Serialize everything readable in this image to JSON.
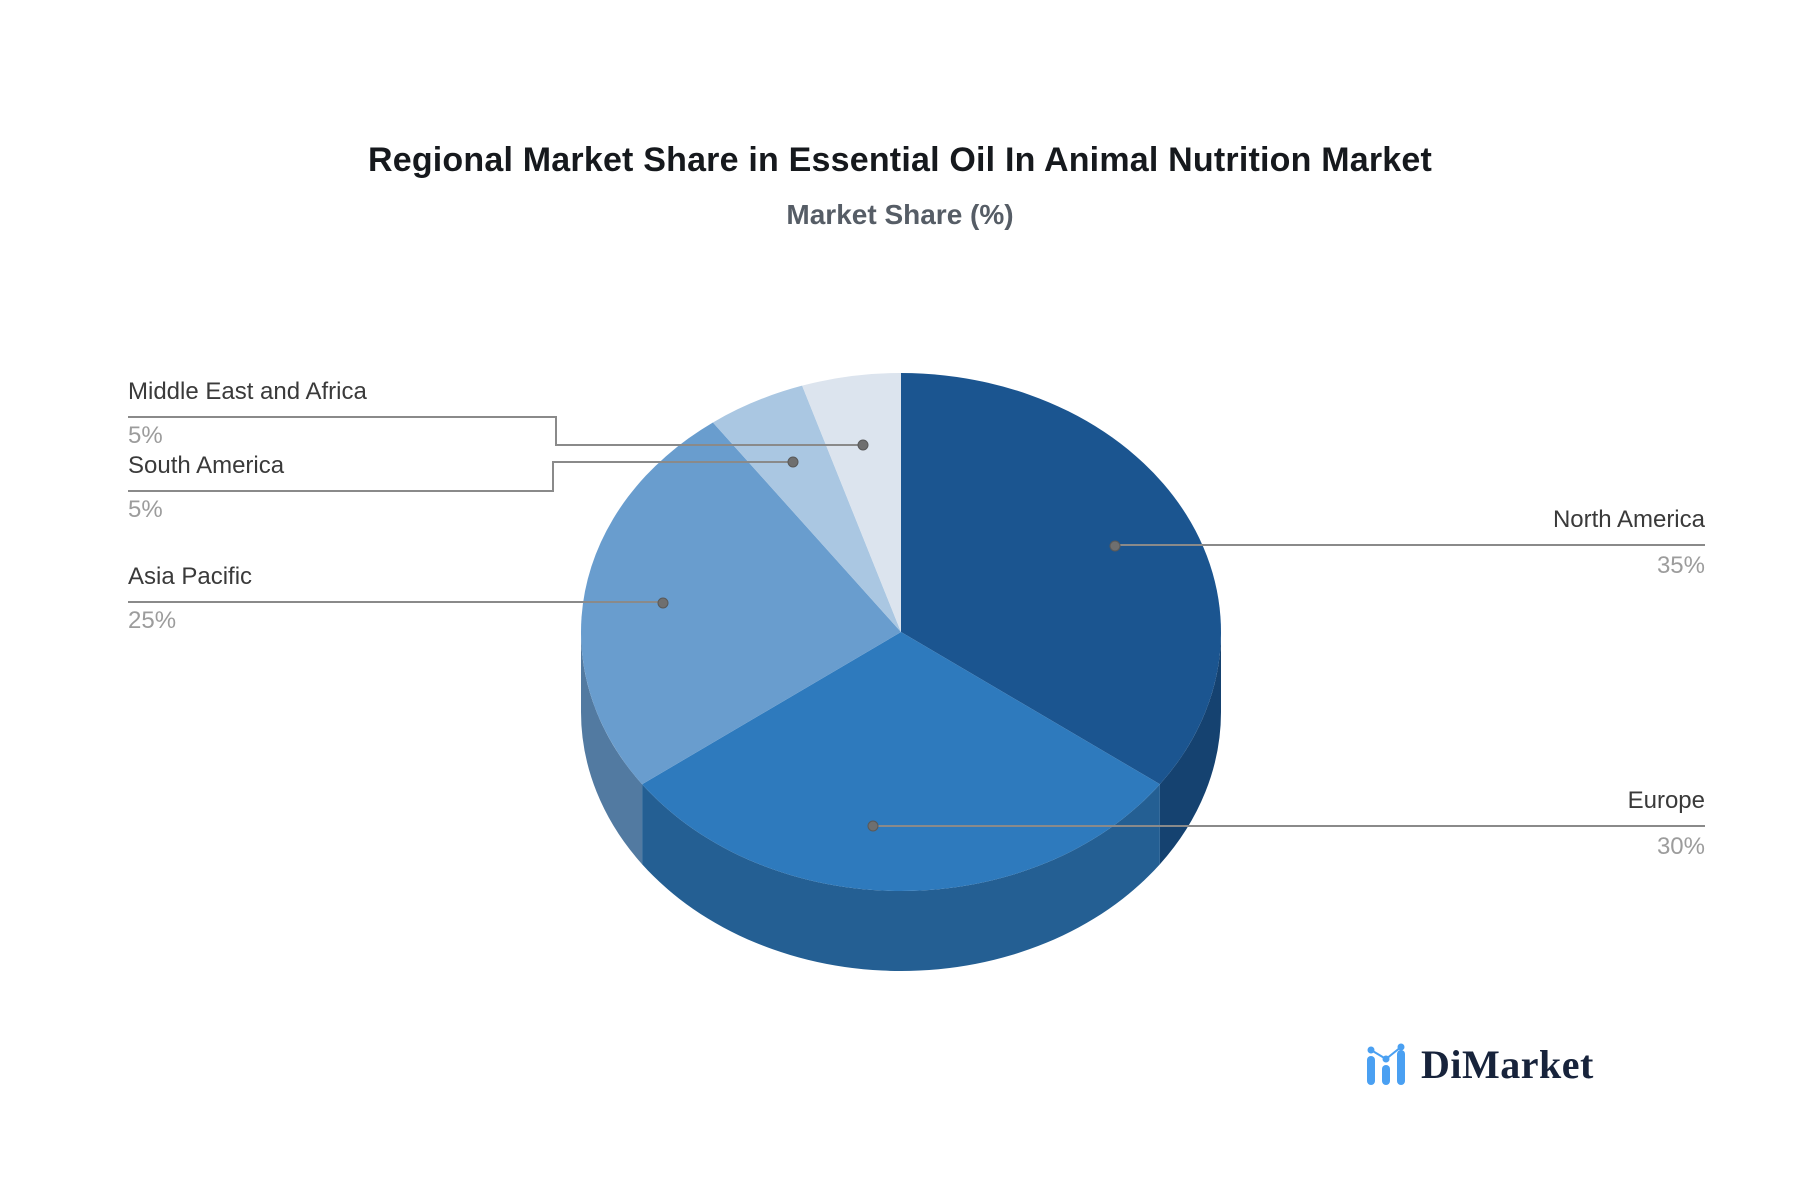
{
  "title": "Regional Market Share in Essential Oil In Animal Nutrition Market",
  "subtitle": "Market Share (%)",
  "chart_data": {
    "type": "pie",
    "style": "3d",
    "unit": "%",
    "direction": "clockwise",
    "start_angle_deg": 0,
    "legend_position": "callout-labels",
    "series": [
      {
        "label": "North America",
        "value": 35,
        "pct_label": "35%",
        "color": "#1b5590"
      },
      {
        "label": "Europe",
        "value": 30,
        "pct_label": "30%",
        "color": "#2e7abd"
      },
      {
        "label": "Asia Pacific",
        "value": 25,
        "pct_label": "25%",
        "color": "#699dce"
      },
      {
        "label": "South America",
        "value": 5,
        "pct_label": "5%",
        "color": "#aac7e2"
      },
      {
        "label": "Middle East and Africa",
        "value": 5,
        "pct_label": "5%",
        "color": "#dce4ee"
      }
    ],
    "callout_line_color": "#8a8a8a",
    "callout_dot_color": "#6f6f6f",
    "label_color": "#3a3a3a",
    "pct_color": "#9c9c9c"
  },
  "logo": {
    "text": "DiMarket",
    "icon": "bar-line-chart-icon",
    "icon_color": "#4aa0f2",
    "text_color": "#17233b"
  }
}
